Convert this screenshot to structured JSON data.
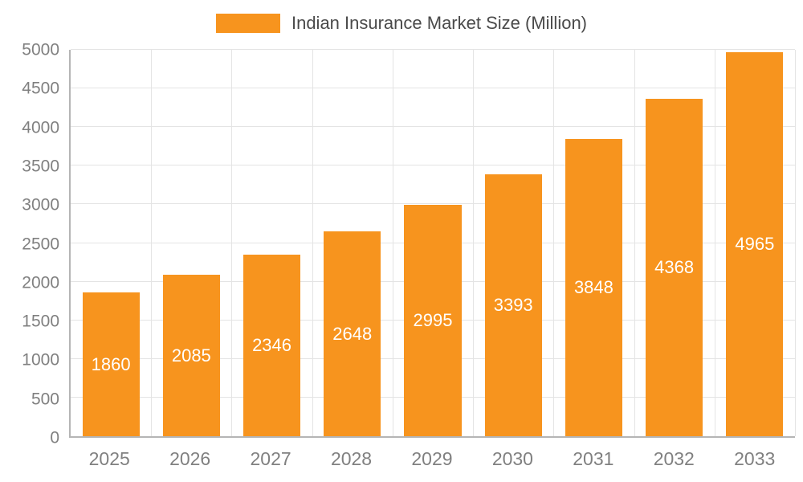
{
  "chart_data": {
    "type": "bar",
    "title": "Indian Insurance Market Size (Million)",
    "categories": [
      "2025",
      "2026",
      "2027",
      "2028",
      "2029",
      "2030",
      "2031",
      "2032",
      "2033"
    ],
    "values": [
      1860,
      2085,
      2346,
      2648,
      2995,
      3393,
      3848,
      4368,
      4965
    ],
    "yticks": [
      0,
      500,
      1000,
      1500,
      2000,
      2500,
      3000,
      3500,
      4000,
      4500,
      5000
    ],
    "ylim": [
      0,
      5000
    ],
    "xlabel": "",
    "ylabel": "",
    "grid": true,
    "legend_position": "top",
    "bar_color": "#f7941e",
    "bar_label_color": "#ffffff",
    "axis_text_color": "#808080",
    "legend_text_color": "#4a4a4a"
  }
}
